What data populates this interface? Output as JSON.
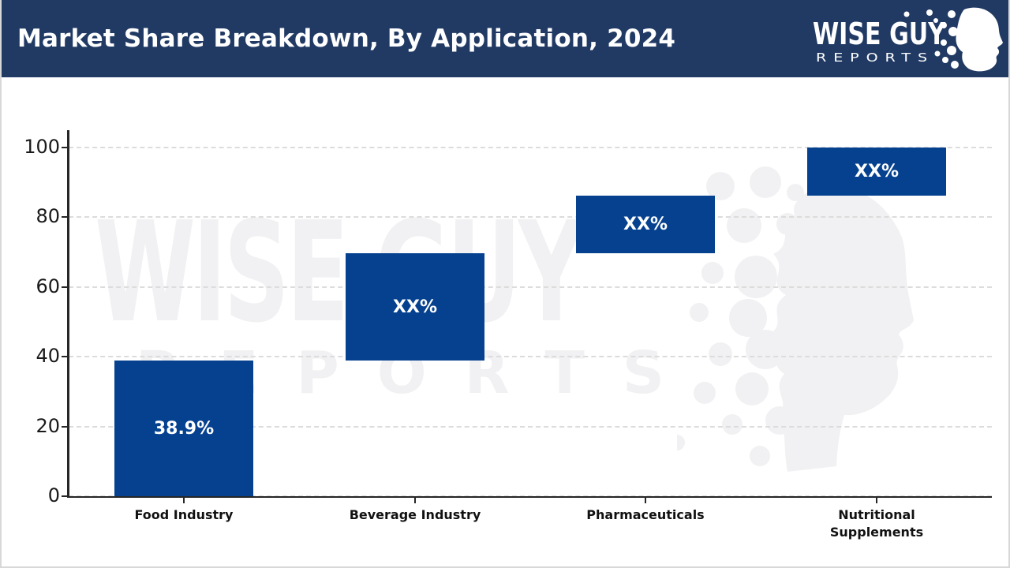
{
  "header": {
    "title": "Market Share Breakdown, By Application, 2024",
    "logo": {
      "brand_line1": "WISE GUY",
      "brand_line2": "REPORTS"
    }
  },
  "watermark": {
    "line1": "WISE GUY",
    "line2": "REPORTS"
  },
  "colors": {
    "header_bg": "#213A64",
    "bar": "#05418F",
    "bar_label": "#FFFFFF",
    "gridline": "#DCDCDC",
    "axis": "#262626",
    "tick_text": "#1A1A1A",
    "watermark": "#F1F1F3"
  },
  "chart_data": {
    "type": "bar",
    "subtype": "waterfall-floating-bars",
    "title": "Market Share Breakdown, By Application, 2024",
    "categories": [
      "Food Industry",
      "Beverage Industry",
      "Pharmaceuticals",
      "Nutritional Supplements"
    ],
    "segments": [
      {
        "category": "Food Industry",
        "start": 0,
        "end": 38.9,
        "label": "38.9%"
      },
      {
        "category": "Beverage Industry",
        "start": 38.9,
        "end": 69.6,
        "label": "XX%"
      },
      {
        "category": "Pharmaceuticals",
        "start": 69.6,
        "end": 86.2,
        "label": "XX%"
      },
      {
        "category": "Nutritional Supplements",
        "start": 86.2,
        "end": 100,
        "label": "XX%"
      }
    ],
    "xlabel": "",
    "ylabel": "",
    "ylim": [
      0,
      100
    ],
    "yticks": [
      0,
      20,
      40,
      60,
      80,
      100
    ],
    "grid": "horizontal-dashed",
    "legend": "none",
    "bar_color": "#05418F",
    "bar_label_color": "#FFFFFF"
  }
}
